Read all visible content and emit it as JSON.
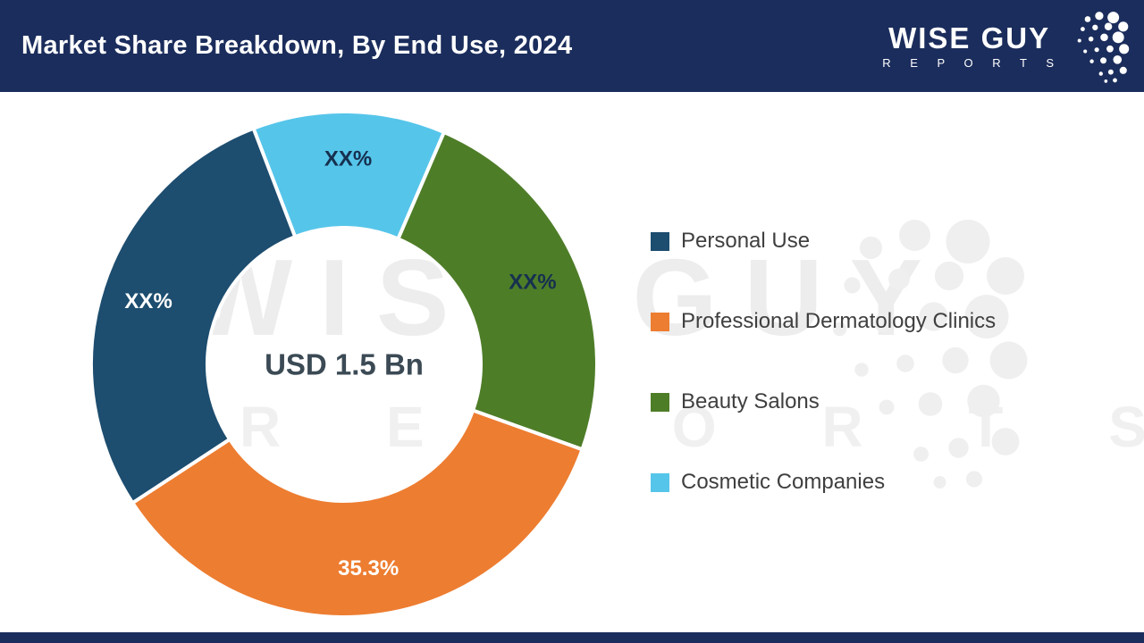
{
  "header": {
    "title": "Market Share Breakdown, By End Use, 2024",
    "logo": {
      "line1": "WISE GUY",
      "line2": "R E P O R T S"
    }
  },
  "watermark": {
    "line1": "WISE GUY",
    "line2": "R E P O R T S"
  },
  "colors": {
    "header_bg": "#1b2d5c",
    "accent_navy": "#1d4d6f",
    "accent_orange": "#ed7d31",
    "accent_green": "#4e7d28",
    "accent_sky": "#56c5ea"
  },
  "chart_data": {
    "type": "pie",
    "subtype": "donut",
    "title": "Market Share Breakdown, By End Use, 2024",
    "center_label": "USD 1.5 Bn",
    "start_angle_deg": -21,
    "legend_position": "right",
    "segments": [
      {
        "name": "Cosmetic Companies",
        "value_pct": 12.3,
        "display_label": "XX%",
        "color": "#56c5ea",
        "label_color": "#16304f"
      },
      {
        "name": "Beauty Salons",
        "value_pct": 24.0,
        "display_label": "XX%",
        "color": "#4e7d28",
        "label_color": "#16304f"
      },
      {
        "name": "Professional Dermatology Clinics",
        "value_pct": 35.3,
        "display_label": "35.3%",
        "color": "#ed7d31",
        "label_color": "#ffffff"
      },
      {
        "name": "Personal Use",
        "value_pct": 28.4,
        "display_label": "XX%",
        "color": "#1d4d6f",
        "label_color": "#ffffff"
      }
    ],
    "legend": [
      {
        "label": "Personal Use",
        "color": "#1d4d6f"
      },
      {
        "label": "Professional Dermatology Clinics",
        "color": "#ed7d31"
      },
      {
        "label": "Beauty Salons",
        "color": "#4e7d28"
      },
      {
        "label": "Cosmetic Companies",
        "color": "#56c5ea"
      }
    ]
  }
}
